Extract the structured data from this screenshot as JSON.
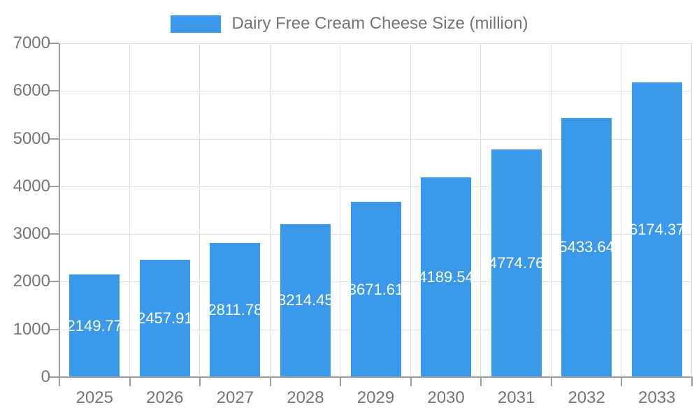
{
  "legend": {
    "label": "Dairy Free Cream Cheese Size (million)"
  },
  "chart_data": {
    "type": "bar",
    "title": "Dairy Free Cream Cheese Size (million)",
    "categories": [
      "2025",
      "2026",
      "2027",
      "2028",
      "2029",
      "2030",
      "2031",
      "2032",
      "2033"
    ],
    "values": [
      2149.77,
      2457.91,
      2811.78,
      3214.45,
      3671.61,
      4189.54,
      4774.76,
      5433.64,
      6174.37
    ],
    "value_labels": [
      "2149.77",
      "2457.91",
      "2811.78",
      "3214.45",
      "3671.61",
      "4189.54",
      "4774.76",
      "5433.64",
      "6174.37"
    ],
    "xlabel": "",
    "ylabel": "",
    "ylim": [
      0,
      7000
    ],
    "yticks": [
      0,
      1000,
      2000,
      3000,
      4000,
      5000,
      6000,
      7000
    ],
    "grid": true,
    "legend_position": "top-center",
    "colors": {
      "bar": "#3b99ec",
      "bar_label_text": "#ffffff",
      "axis_text": "#757575",
      "gridline": "#e0e0e0",
      "axis_line": "#9e9e9e",
      "background": "#ffffff"
    }
  }
}
